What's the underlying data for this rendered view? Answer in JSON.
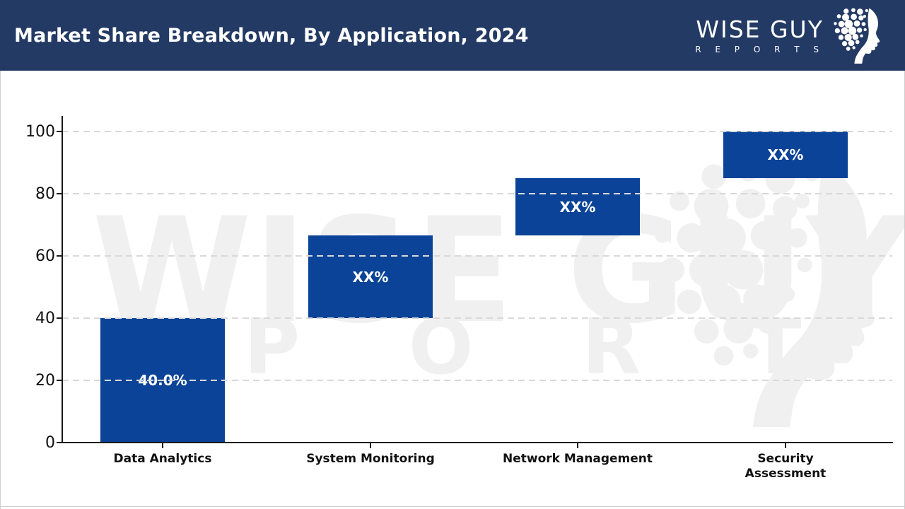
{
  "header": {
    "title": "Market Share Breakdown, By Application, 2024",
    "logo_line1": "WISE GUY",
    "logo_line2": "R E P O R T S"
  },
  "watermark": {
    "line1": "WISE GUY",
    "line2": "P O R T S"
  },
  "colors": {
    "header_bg": "#233a64",
    "bar": "#0a4397",
    "gridline": "#d9d9d9",
    "axis": "#1a1a1a",
    "watermark": "#f0f0f1",
    "bar_label_text": "#ffffff"
  },
  "chart_data": {
    "type": "bar",
    "subtype": "waterfall",
    "title": "Market Share Breakdown, By Application, 2024",
    "categories": [
      "Data Analytics",
      "System Monitoring",
      "Network Management",
      "Security Assessment"
    ],
    "category_display_lines": [
      [
        "Data Analytics"
      ],
      [
        "System Monitoring"
      ],
      [
        "Network Management"
      ],
      [
        "Security",
        "Assessment"
      ]
    ],
    "segments": [
      {
        "category": "Data Analytics",
        "from": 0,
        "to": 40,
        "label": "40.0%"
      },
      {
        "category": "System Monitoring",
        "from": 40,
        "to": 66.5,
        "label": "XX%"
      },
      {
        "category": "Network Management",
        "from": 66.5,
        "to": 85,
        "label": "XX%"
      },
      {
        "category": "Security Assessment",
        "from": 85,
        "to": 100,
        "label": "XX%"
      }
    ],
    "yticks": [
      0,
      20,
      40,
      60,
      80,
      100
    ],
    "ylim": [
      0,
      105
    ],
    "xlabel": "",
    "ylabel": "",
    "grid": "horizontal-dashed",
    "legend": "none",
    "units": "percent market share"
  }
}
